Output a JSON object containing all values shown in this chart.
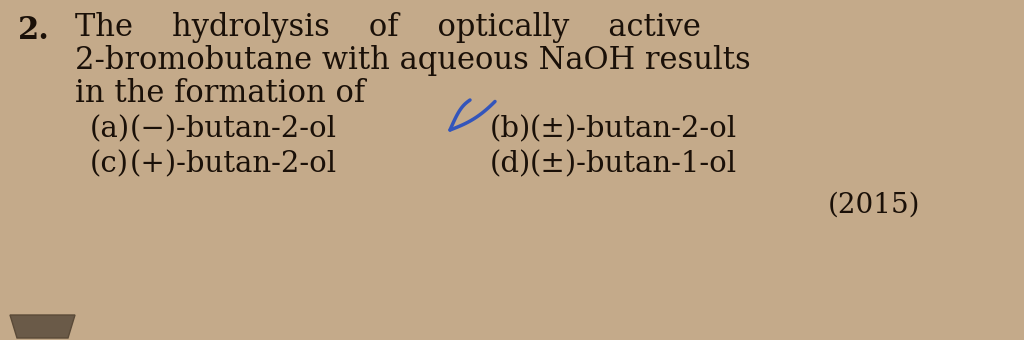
{
  "background_color": "#c4aa8a",
  "text_color": "#1a1008",
  "question_number": "2.",
  "line1": "The    hydrolysis    of    optically    active",
  "line2": "2-bromobutane with aqueous NaOH results",
  "line3": "in the formation of",
  "option_a_label": "(a)",
  "option_a_text": "(−)-butan-2-ol",
  "option_b_label": "(b)",
  "option_b_text": "(±)-butan-2-ol",
  "option_c_label": "(c)",
  "option_c_text": "(+)-butan-2-ol",
  "option_d_label": "(d)",
  "option_d_text": "(±)-butan-1-ol",
  "year": "(2015)",
  "font_size_main": 22,
  "font_size_options": 21,
  "font_size_year": 20,
  "figsize": [
    10.24,
    3.4
  ],
  "dpi": 100,
  "check_color": "#3355bb"
}
